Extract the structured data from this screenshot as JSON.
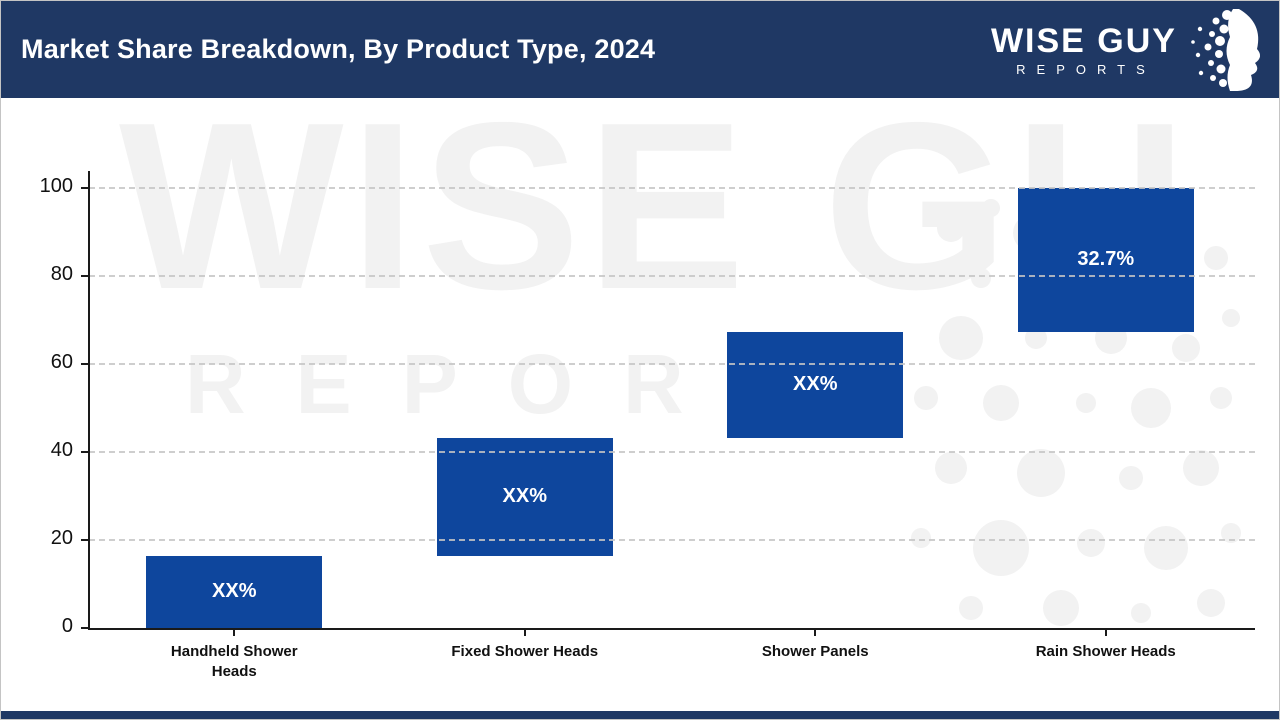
{
  "header": {
    "title": "Market Share Breakdown, By Product Type, 2024",
    "logo": {
      "line1": "WISE GUY",
      "line2": "REPORTS"
    }
  },
  "watermark": {
    "line1": "WISE GU",
    "line2": "REPORTS"
  },
  "chart_data": {
    "type": "bar",
    "subtype": "waterfall-stacked",
    "title": "Market Share Breakdown, By Product Type, 2024",
    "categories": [
      "Handheld Shower Heads",
      "Fixed Shower Heads",
      "Shower Panels",
      "Rain Shower Heads"
    ],
    "series": [
      {
        "name": "Market Share %",
        "segments": [
          {
            "start": 0,
            "end": 16.4,
            "label": "XX%"
          },
          {
            "start": 16.4,
            "end": 43.2,
            "label": "XX%"
          },
          {
            "start": 43.2,
            "end": 67.3,
            "label": "XX%"
          },
          {
            "start": 67.3,
            "end": 100,
            "label": "32.7%"
          }
        ]
      }
    ],
    "ylim": [
      0,
      100
    ],
    "yticks": [
      0,
      20,
      40,
      60,
      80,
      100
    ],
    "xlabel": "",
    "ylabel": "",
    "grid": "horizontal-dashed",
    "legend": "none"
  },
  "colors": {
    "header_bg": "#1f3864",
    "footer_bg": "#1f3864",
    "bar": "#0e469d",
    "axis": "#1a1a1a",
    "grid": "#c6c6c6",
    "watermark": "#f2f2f2"
  }
}
